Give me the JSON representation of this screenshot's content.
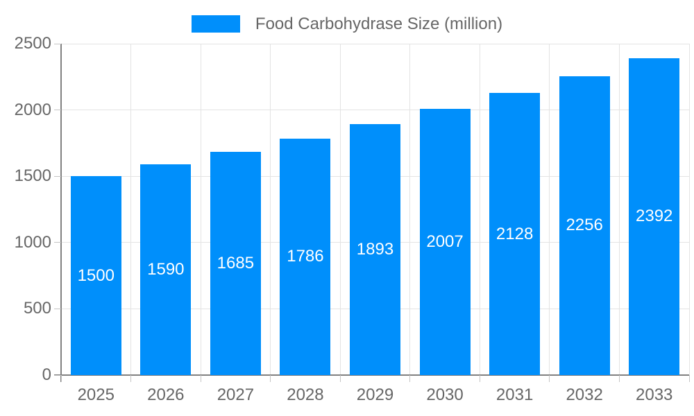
{
  "chart_data": {
    "type": "bar",
    "legend": {
      "label": "Food Carbohydrase Size (million)",
      "position": "top"
    },
    "categories": [
      "2025",
      "2026",
      "2027",
      "2028",
      "2029",
      "2030",
      "2031",
      "2032",
      "2033"
    ],
    "values": [
      1500,
      1590,
      1685,
      1786,
      1893,
      2007,
      2128,
      2256,
      2392
    ],
    "bar_labels": [
      "1500",
      "1590",
      "1685",
      "1786",
      "1893",
      "2007",
      "2128",
      "2256",
      "2392"
    ],
    "xlabel": "",
    "ylabel": "",
    "ylim": [
      0,
      2500
    ],
    "yticks": [
      0,
      500,
      1000,
      1500,
      2000,
      2500
    ],
    "grid": "both",
    "colors": {
      "bar": "#008FFB",
      "grid": "#E3E3E3",
      "axis": "#808080",
      "tick": "#C4C4C4",
      "axis_label": "#666666",
      "bar_label": "#FFFFFF",
      "background": "#FFFFFF"
    }
  }
}
